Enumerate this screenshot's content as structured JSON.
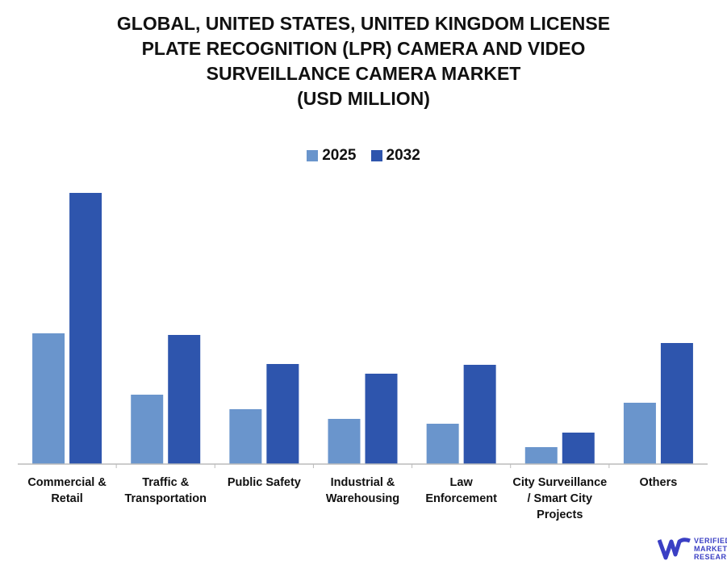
{
  "chart_data": {
    "type": "bar",
    "title_lines": [
      "GLOBAL, UNITED STATES, UNITED KINGDOM LICENSE",
      "PLATE RECOGNITION (LPR) CAMERA AND VIDEO",
      "SURVEILLANCE CAMERA MARKET",
      "(USD MILLION)"
    ],
    "categories": [
      [
        "Commercial &",
        "Retail"
      ],
      [
        "Traffic &",
        "Transportation"
      ],
      [
        "Public Safety"
      ],
      [
        "Industrial &",
        "Warehousing"
      ],
      [
        "Law",
        "Enforcement"
      ],
      [
        "City Surveillance",
        "/ Smart City",
        "Projects"
      ],
      [
        "Others"
      ]
    ],
    "series": [
      {
        "name": "2025",
        "color": "#6a95cc",
        "values": [
          162,
          86,
          68,
          56,
          50,
          21,
          76
        ]
      },
      {
        "name": "2032",
        "color": "#2e55ad",
        "values": [
          336,
          160,
          124,
          112,
          123,
          39,
          150
        ]
      }
    ],
    "ylim": [
      0,
      360
    ],
    "y_axis_shown": false,
    "grid": false,
    "legend_position": "top-center",
    "note_values": "relative estimates; no value axis printed"
  },
  "logo": {
    "text": [
      "VERIFIED",
      "MARKET",
      "RESEARCH"
    ],
    "color": "#3a3fc4"
  }
}
